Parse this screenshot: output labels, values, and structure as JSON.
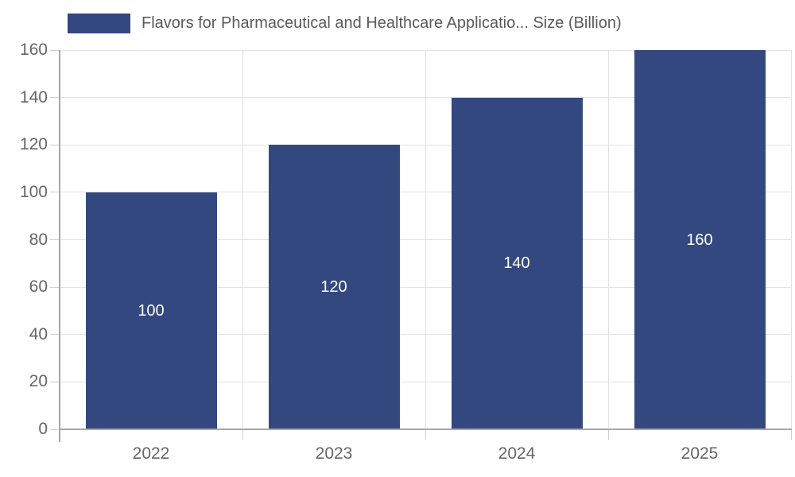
{
  "legend": {
    "label": "Flavors for Pharmaceutical and Healthcare Applicatio... Size (Billion)"
  },
  "chart_data": {
    "type": "bar",
    "categories": [
      "2022",
      "2023",
      "2024",
      "2025"
    ],
    "values": [
      100,
      120,
      140,
      160
    ],
    "series": [
      {
        "name": "Flavors for Pharmaceutical and Healthcare Applicatio... Size (Billion)",
        "values": [
          100,
          120,
          140,
          160
        ]
      }
    ],
    "title": "",
    "xlabel": "",
    "ylabel": "",
    "ylim": [
      0,
      160
    ],
    "ytick_step": 20,
    "yticks": [
      0,
      20,
      40,
      60,
      80,
      100,
      120,
      140,
      160
    ],
    "grid": true,
    "legend_position": "top-left",
    "value_labels": "inside-center"
  },
  "colors": {
    "bar": "#344880",
    "gridline": "#e2e2e2",
    "tick": "#cfcfcf",
    "axis_line": "#a7a7a7",
    "axis_label": "#666666",
    "legend_text": "#5a5a5a",
    "value_label": "#ffffff",
    "background": "#ffffff"
  }
}
